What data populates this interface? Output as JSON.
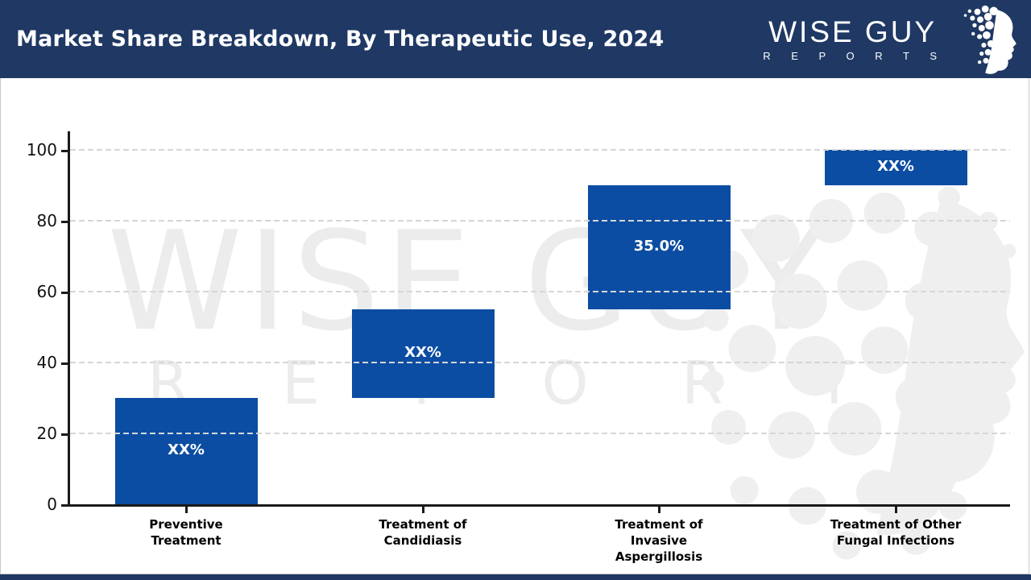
{
  "header": {
    "title": "Market Share Breakdown, By Therapeutic Use, 2024",
    "logo": {
      "name": "WISE GUY",
      "tagline": "R E P O R T S"
    }
  },
  "watermark": {
    "text": "WISE GUY",
    "tagline": "REPORTS"
  },
  "colors": {
    "header_bg": "#1f3864",
    "footer_bg": "#1f3864",
    "bar": "#0b4da2",
    "bar_label": "#ffffff",
    "grid": "#d6d6d6",
    "axis": "#1a1a1a",
    "watermark": "#ececec",
    "page_border": "#c9c9c9"
  },
  "chart_data": {
    "type": "bar",
    "subtype": "floating-waterfall",
    "title": "Market Share Breakdown, By Therapeutic Use, 2024",
    "categories": [
      {
        "lines": [
          "Preventive",
          "Treatment"
        ]
      },
      {
        "lines": [
          "Treatment of",
          "Candidiasis"
        ]
      },
      {
        "lines": [
          "Treatment of",
          "Invasive",
          "Aspergillosis"
        ]
      },
      {
        "lines": [
          "Treatment of Other",
          "Fungal Infections"
        ]
      }
    ],
    "segments": [
      {
        "label": "XX%",
        "start": 0,
        "end": 30
      },
      {
        "label": "XX%",
        "start": 30,
        "end": 55
      },
      {
        "label": "35.0%",
        "start": 55,
        "end": 90
      },
      {
        "label": "XX%",
        "start": 90,
        "end": 100
      }
    ],
    "yticks": [
      0,
      20,
      40,
      60,
      80,
      100
    ],
    "ylim": [
      0,
      105
    ],
    "xlabel": "",
    "ylabel": "",
    "grid": "horizontal-dashed",
    "legend_position": "none"
  }
}
